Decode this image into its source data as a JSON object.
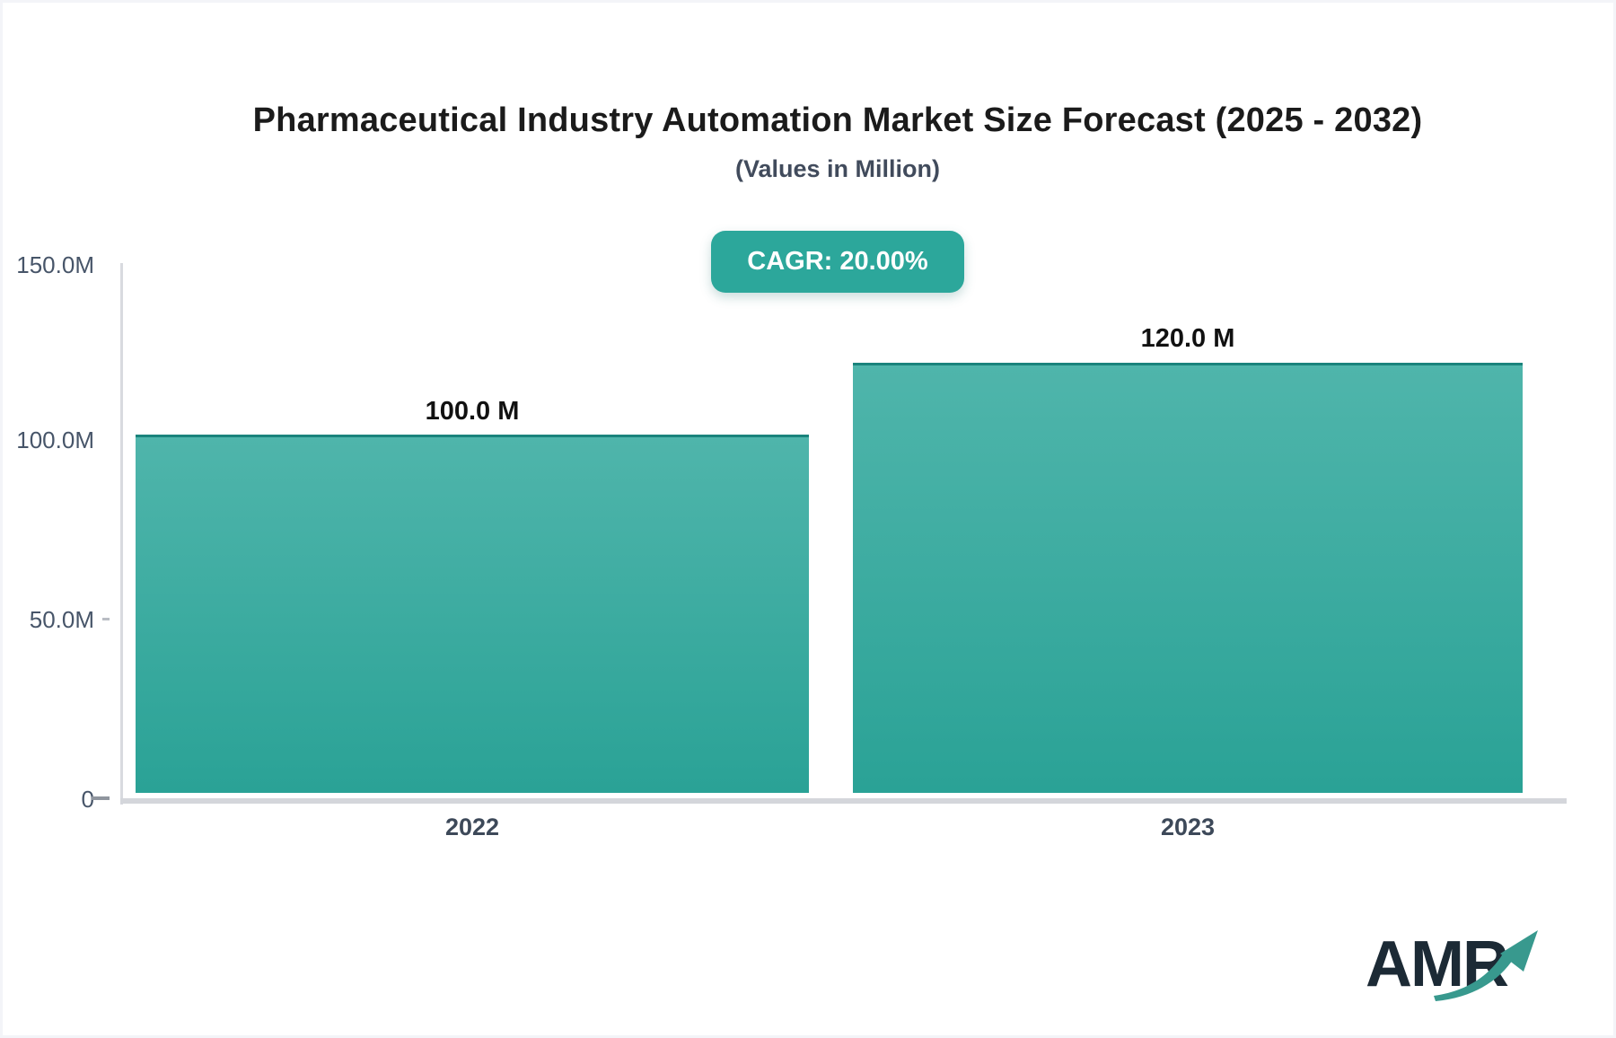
{
  "title": "Pharmaceutical Industry Automation Market Size Forecast (2025 - 2032)",
  "subtitle": "(Values in Million)",
  "cagr_badge_label": "CAGR: 20.00%",
  "logo": {
    "text": "AMR"
  },
  "colors": {
    "accent_teal": "#2ca79b",
    "bar_gradient_top": "#4fb5ab",
    "bar_gradient_bottom": "#2aa296",
    "bar_top_border": "#1a837c",
    "axis_line": "#d8dadf",
    "axis_label": "#475569",
    "title_text": "#1b1b1b",
    "logo_text": "#1c2a35",
    "logo_arrow": "#38998e"
  },
  "chart_data": {
    "type": "bar",
    "categories": [
      "2022",
      "2023"
    ],
    "values": [
      100.0,
      120.0
    ],
    "value_labels": [
      "100.0 M",
      "120.0 M"
    ],
    "units": "Million",
    "ylim": [
      0,
      150
    ],
    "ytick_labels": [
      "150.0M",
      "100.0M",
      "50.0M",
      "0"
    ],
    "ytick_values": [
      150,
      100,
      50,
      0
    ],
    "grid": false,
    "legend": false,
    "bar_color": "teal gradient",
    "pixels_per_unit": 3.99
  }
}
